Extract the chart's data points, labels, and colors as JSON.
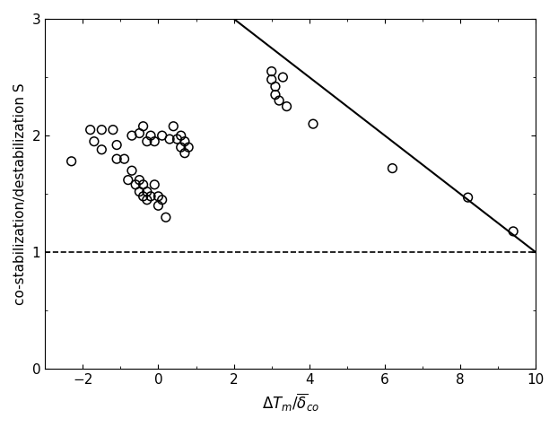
{
  "scatter_x": [
    -2.3,
    -1.8,
    -1.7,
    -1.5,
    -1.5,
    -1.2,
    -1.1,
    -1.1,
    -0.9,
    -0.7,
    -0.5,
    -0.4,
    -0.3,
    -0.2,
    -0.1,
    0.1,
    0.3,
    0.4,
    0.5,
    0.6,
    0.6,
    0.7,
    0.7,
    0.8,
    -0.8,
    -0.7,
    -0.6,
    -0.5,
    -0.5,
    -0.4,
    -0.4,
    -0.3,
    -0.3,
    -0.2,
    -0.1,
    0.0,
    0.0,
    0.1,
    0.2,
    3.0,
    3.0,
    3.1,
    3.1,
    3.2,
    3.3,
    3.4,
    4.1,
    6.2,
    8.2,
    9.4
  ],
  "scatter_y": [
    1.78,
    2.05,
    1.95,
    2.05,
    1.88,
    2.05,
    1.92,
    1.8,
    1.8,
    2.0,
    2.02,
    2.08,
    1.95,
    2.0,
    1.95,
    2.0,
    1.97,
    2.08,
    1.97,
    1.9,
    2.0,
    1.85,
    1.95,
    1.9,
    1.62,
    1.7,
    1.58,
    1.62,
    1.52,
    1.48,
    1.58,
    1.45,
    1.52,
    1.48,
    1.58,
    1.48,
    1.4,
    1.45,
    1.3,
    2.55,
    2.48,
    2.42,
    2.35,
    2.3,
    2.5,
    2.25,
    2.1,
    1.72,
    1.47,
    1.18
  ],
  "line_x_start": 2.0,
  "line_x_end": 10.2,
  "line_slope": -0.25,
  "line_intercept": 3.5,
  "dashed_y": 1.0,
  "xlim": [
    -3,
    10
  ],
  "ylim": [
    0,
    3
  ],
  "xticks": [
    -2,
    0,
    2,
    4,
    6,
    8,
    10
  ],
  "yticks": [
    0,
    1,
    2,
    3
  ],
  "xlabel": "$\\Delta T_m/\\overline{\\delta}_{co}$",
  "ylabel": "co-stabilization/destabilization S",
  "marker_size": 7,
  "line_color": "#000000",
  "scatter_color": "none",
  "scatter_edgecolor": "#000000",
  "background_color": "#ffffff"
}
